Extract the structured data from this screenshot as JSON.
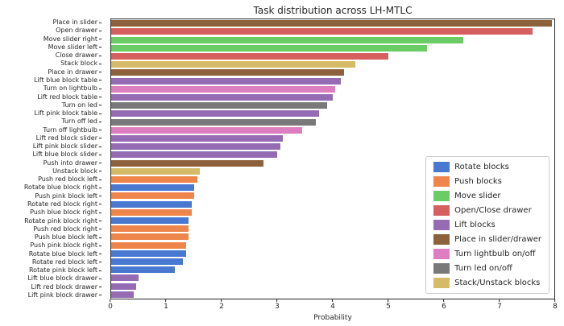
{
  "title": "Task distribution across LH-MTLC",
  "xlabel": "Probability",
  "chart_data": {
    "type": "bar",
    "orientation": "horizontal",
    "title": "Task distribution across LH-MTLC",
    "xlabel": "Probability",
    "ylabel": "",
    "xlim": [
      0,
      8
    ],
    "x_ticks": [
      "0",
      "1",
      "2",
      "3",
      "4",
      "5",
      "6",
      "7",
      "8"
    ],
    "grid": false,
    "legend_position": "lower right",
    "legend": [
      {
        "category": "rotate",
        "label": "Rotate blocks",
        "color": "#4878d0"
      },
      {
        "category": "push",
        "label": "Push blocks",
        "color": "#ee854a"
      },
      {
        "category": "slider",
        "label": "Move slider",
        "color": "#6acc64"
      },
      {
        "category": "drawer",
        "label": "Open/Close drawer",
        "color": "#d65f5f"
      },
      {
        "category": "lift",
        "label": "Lift blocks",
        "color": "#956cb4"
      },
      {
        "category": "place",
        "label": "Place in slider/drawer",
        "color": "#8c613c"
      },
      {
        "category": "lightbulb",
        "label": "Turn lightbulb on/off",
        "color": "#dc7ec0"
      },
      {
        "category": "led",
        "label": "Turn led on/off",
        "color": "#797979"
      },
      {
        "category": "stack",
        "label": "Stack/Unstack blocks",
        "color": "#d5bb67"
      }
    ],
    "bars": [
      {
        "label": "Place in slider",
        "value": 7.95,
        "category": "place"
      },
      {
        "label": "Open drawer",
        "value": 7.6,
        "category": "drawer"
      },
      {
        "label": "Move slider right",
        "value": 6.35,
        "category": "slider"
      },
      {
        "label": "Move slider left",
        "value": 5.7,
        "category": "slider"
      },
      {
        "label": "Close drawer",
        "value": 5.0,
        "category": "drawer"
      },
      {
        "label": "Stack block",
        "value": 4.4,
        "category": "stack"
      },
      {
        "label": "Place in drawer",
        "value": 4.2,
        "category": "place"
      },
      {
        "label": "Lift blue block table",
        "value": 4.15,
        "category": "lift"
      },
      {
        "label": "Turn on lightbulb",
        "value": 4.05,
        "category": "lightbulb"
      },
      {
        "label": "Lift red block table",
        "value": 4.0,
        "category": "lift"
      },
      {
        "label": "Turn on led",
        "value": 3.9,
        "category": "led"
      },
      {
        "label": "Lift pink block table",
        "value": 3.75,
        "category": "lift"
      },
      {
        "label": "Turn off led",
        "value": 3.7,
        "category": "led"
      },
      {
        "label": "Turn off lightbulb",
        "value": 3.45,
        "category": "lightbulb"
      },
      {
        "label": "Lift red block slider",
        "value": 3.1,
        "category": "lift"
      },
      {
        "label": "Lift pink block slider",
        "value": 3.05,
        "category": "lift"
      },
      {
        "label": "Lift blue block slider",
        "value": 3.0,
        "category": "lift"
      },
      {
        "label": "Push into drawer",
        "value": 2.75,
        "category": "place"
      },
      {
        "label": "Unstack block",
        "value": 1.6,
        "category": "stack"
      },
      {
        "label": "Push red block left",
        "value": 1.55,
        "category": "push"
      },
      {
        "label": "Rotate blue block right",
        "value": 1.5,
        "category": "rotate"
      },
      {
        "label": "Push pink block left",
        "value": 1.5,
        "category": "push"
      },
      {
        "label": "Rotate red block right",
        "value": 1.45,
        "category": "rotate"
      },
      {
        "label": "Push blue block right",
        "value": 1.45,
        "category": "push"
      },
      {
        "label": "Rotate pink block right",
        "value": 1.4,
        "category": "rotate"
      },
      {
        "label": "Push red block right",
        "value": 1.4,
        "category": "push"
      },
      {
        "label": "Push blue block left",
        "value": 1.4,
        "category": "push"
      },
      {
        "label": "Push pink block right",
        "value": 1.35,
        "category": "push"
      },
      {
        "label": "Rotate blue block left",
        "value": 1.35,
        "category": "rotate"
      },
      {
        "label": "Rotate red block left",
        "value": 1.3,
        "category": "rotate"
      },
      {
        "label": "Rotate pink block left",
        "value": 1.15,
        "category": "rotate"
      },
      {
        "label": "Lift blue block drawer",
        "value": 0.5,
        "category": "lift"
      },
      {
        "label": "Lift red block drawer",
        "value": 0.45,
        "category": "lift"
      },
      {
        "label": "Lift pink block drawer",
        "value": 0.4,
        "category": "lift"
      }
    ]
  }
}
